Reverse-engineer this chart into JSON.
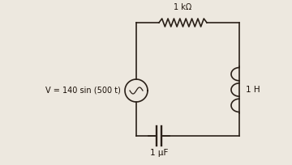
{
  "bg_color": "#ede8df",
  "wire_color": "#2a2018",
  "component_color": "#2a2018",
  "text_color": "#1a1008",
  "title_label": "V = 140 sin (500 t)",
  "resistor_label": "1 kΩ",
  "inductor_label": "1 H",
  "capacitor_label": "1 μF",
  "figsize": [
    3.6,
    2.04
  ],
  "dpi": 100
}
